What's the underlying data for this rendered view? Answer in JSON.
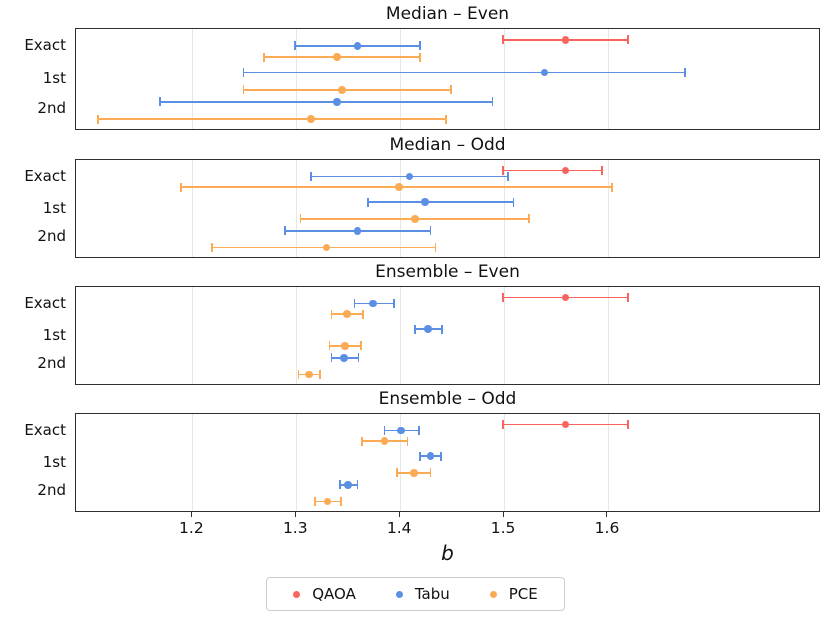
{
  "chart_data": {
    "type": "errorbar",
    "title": "",
    "xlabel": "b",
    "ylabel": "",
    "xlim": [
      1.088,
      1.805
    ],
    "xticks": [
      1.2,
      1.3,
      1.4,
      1.5,
      1.6
    ],
    "grid": true,
    "legend_position": "bottom",
    "categories": [
      "Exact",
      "1st",
      "2nd"
    ],
    "series": [
      {
        "name": "QAOA",
        "color": "#f9655e"
      },
      {
        "name": "Tabu",
        "color": "#5b8fe4"
      },
      {
        "name": "PCE",
        "color": "#fcab55"
      }
    ],
    "panels": [
      {
        "title": "Median – Even",
        "rows": [
          {
            "category": "Exact",
            "points": [
              {
                "series": "QAOA",
                "lane": "top",
                "x": 1.56,
                "lo": 1.5,
                "hi": 1.62
              },
              {
                "series": "Tabu",
                "lane": "mid",
                "x": 1.36,
                "lo": 1.3,
                "hi": 1.42
              },
              {
                "series": "PCE",
                "lane": "bot",
                "x": 1.34,
                "lo": 1.27,
                "hi": 1.42
              }
            ]
          },
          {
            "category": "1st",
            "points": [
              {
                "series": "Tabu",
                "lane": "top",
                "x": 1.54,
                "lo": 1.25,
                "hi": 1.675
              },
              {
                "series": "PCE",
                "lane": "bot",
                "x": 1.345,
                "lo": 1.25,
                "hi": 1.45
              }
            ]
          },
          {
            "category": "2nd",
            "points": [
              {
                "series": "Tabu",
                "lane": "top",
                "x": 1.34,
                "lo": 1.17,
                "hi": 1.49
              },
              {
                "series": "PCE",
                "lane": "bot",
                "x": 1.315,
                "lo": 1.11,
                "hi": 1.445
              }
            ]
          }
        ]
      },
      {
        "title": "Median – Odd",
        "rows": [
          {
            "category": "Exact",
            "points": [
              {
                "series": "QAOA",
                "lane": "top",
                "x": 1.56,
                "lo": 1.5,
                "hi": 1.595
              },
              {
                "series": "Tabu",
                "lane": "mid",
                "x": 1.41,
                "lo": 1.315,
                "hi": 1.505
              },
              {
                "series": "PCE",
                "lane": "bot",
                "x": 1.4,
                "lo": 1.19,
                "hi": 1.605
              }
            ]
          },
          {
            "category": "1st",
            "points": [
              {
                "series": "Tabu",
                "lane": "top",
                "x": 1.425,
                "lo": 1.37,
                "hi": 1.51
              },
              {
                "series": "PCE",
                "lane": "bot",
                "x": 1.415,
                "lo": 1.305,
                "hi": 1.525
              }
            ]
          },
          {
            "category": "2nd",
            "points": [
              {
                "series": "Tabu",
                "lane": "top",
                "x": 1.36,
                "lo": 1.29,
                "hi": 1.43
              },
              {
                "series": "PCE",
                "lane": "bot",
                "x": 1.33,
                "lo": 1.22,
                "hi": 1.435
              }
            ]
          }
        ]
      },
      {
        "title": "Ensemble – Even",
        "rows": [
          {
            "category": "Exact",
            "points": [
              {
                "series": "QAOA",
                "lane": "top",
                "x": 1.56,
                "lo": 1.5,
                "hi": 1.62
              },
              {
                "series": "Tabu",
                "lane": "mid",
                "x": 1.375,
                "lo": 1.357,
                "hi": 1.395
              },
              {
                "series": "PCE",
                "lane": "bot",
                "x": 1.35,
                "lo": 1.335,
                "hi": 1.365
              }
            ]
          },
          {
            "category": "1st",
            "points": [
              {
                "series": "Tabu",
                "lane": "top",
                "x": 1.428,
                "lo": 1.415,
                "hi": 1.441
              },
              {
                "series": "PCE",
                "lane": "bot",
                "x": 1.348,
                "lo": 1.333,
                "hi": 1.363
              }
            ]
          },
          {
            "category": "2nd",
            "points": [
              {
                "series": "Tabu",
                "lane": "top",
                "x": 1.347,
                "lo": 1.335,
                "hi": 1.361
              },
              {
                "series": "PCE",
                "lane": "bot",
                "x": 1.313,
                "lo": 1.303,
                "hi": 1.324
              }
            ]
          }
        ]
      },
      {
        "title": "Ensemble – Odd",
        "rows": [
          {
            "category": "Exact",
            "points": [
              {
                "series": "QAOA",
                "lane": "top",
                "x": 1.56,
                "lo": 1.5,
                "hi": 1.62
              },
              {
                "series": "Tabu",
                "lane": "mid",
                "x": 1.402,
                "lo": 1.386,
                "hi": 1.419
              },
              {
                "series": "PCE",
                "lane": "bot",
                "x": 1.386,
                "lo": 1.364,
                "hi": 1.408
              }
            ]
          },
          {
            "category": "1st",
            "points": [
              {
                "series": "Tabu",
                "lane": "top",
                "x": 1.43,
                "lo": 1.42,
                "hi": 1.44
              },
              {
                "series": "PCE",
                "lane": "bot",
                "x": 1.414,
                "lo": 1.398,
                "hi": 1.43
              }
            ]
          },
          {
            "category": "2nd",
            "points": [
              {
                "series": "Tabu",
                "lane": "top",
                "x": 1.351,
                "lo": 1.343,
                "hi": 1.36
              },
              {
                "series": "PCE",
                "lane": "bot",
                "x": 1.331,
                "lo": 1.319,
                "hi": 1.344
              }
            ]
          }
        ]
      }
    ]
  }
}
